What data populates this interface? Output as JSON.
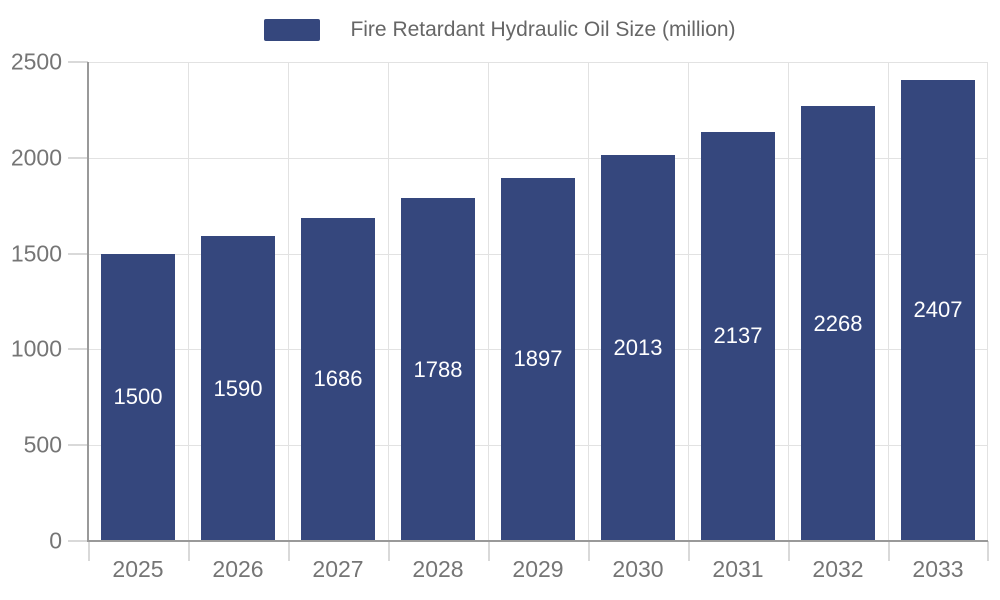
{
  "legend": {
    "label": "Fire Retardant Hydraulic Oil Size (million)"
  },
  "colors": {
    "bar": "#35477d",
    "grid_line": "#e2e2e2",
    "axis_line": "#999999",
    "tick_mark": "#d9d9d9",
    "tick_text": "#757575",
    "legend_text": "#666666",
    "value_text": "#ffffff",
    "background": "#ffffff"
  },
  "chart_data": {
    "type": "bar",
    "title": "Fire Retardant Hydraulic Oil Size (million)",
    "categories": [
      "2025",
      "2026",
      "2027",
      "2028",
      "2029",
      "2030",
      "2031",
      "2032",
      "2033"
    ],
    "values": [
      1500,
      1590,
      1686,
      1788,
      1897,
      2013,
      2137,
      2268,
      2407
    ],
    "series_name": "Fire Retardant Hydraulic Oil Size (million)",
    "xlabel": "",
    "ylabel": "",
    "y_ticks": [
      0,
      500,
      1000,
      1500,
      2000,
      2500
    ],
    "ylim": [
      0,
      2500
    ],
    "grid": true,
    "legend_position": "top",
    "value_labels": "inside-center"
  }
}
